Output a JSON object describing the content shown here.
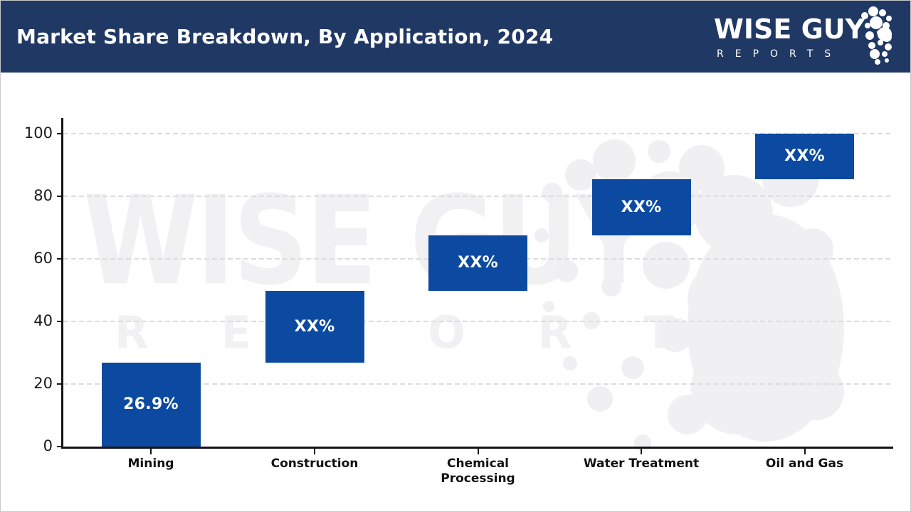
{
  "header": {
    "title": "Market Share Breakdown, By Application, 2024",
    "logo": {
      "line1": "WISE GUY",
      "line2": "REPORTS"
    }
  },
  "watermark": {
    "line1": "WISE GUY",
    "line2": "R E P O R T S"
  },
  "chart_data": {
    "type": "bar",
    "subtype": "waterfall",
    "title": "Market Share Breakdown, By Application, 2024",
    "categories": [
      "Mining",
      "Construction",
      "Chemical Processing",
      "Water Treatment",
      "Oil and Gas"
    ],
    "segments": [
      {
        "category": "Mining",
        "start": 0,
        "end": 26.9,
        "label": "26.9%"
      },
      {
        "category": "Construction",
        "start": 26.9,
        "end": 49.8,
        "label": "XX%"
      },
      {
        "category": "Chemical Processing",
        "start": 49.8,
        "end": 67.5,
        "label": "XX%"
      },
      {
        "category": "Water Treatment",
        "start": 67.5,
        "end": 85.5,
        "label": "XX%"
      },
      {
        "category": "Oil and Gas",
        "start": 85.5,
        "end": 100,
        "label": "XX%"
      }
    ],
    "y_ticks": [
      0,
      20,
      40,
      60,
      80,
      100
    ],
    "ylim": [
      0,
      105
    ],
    "xlabel": "",
    "ylabel": "",
    "grid": "horizontal-dashed",
    "legend": "none",
    "bar_color": "#0b4aa0",
    "colors": {
      "header_bg": "#203864",
      "bar": "#0b4aa0",
      "gridline": "#dcdcdc",
      "watermark": "#f1f1f3",
      "axis": "#141414",
      "bar_label_text": "#ffffff"
    }
  }
}
